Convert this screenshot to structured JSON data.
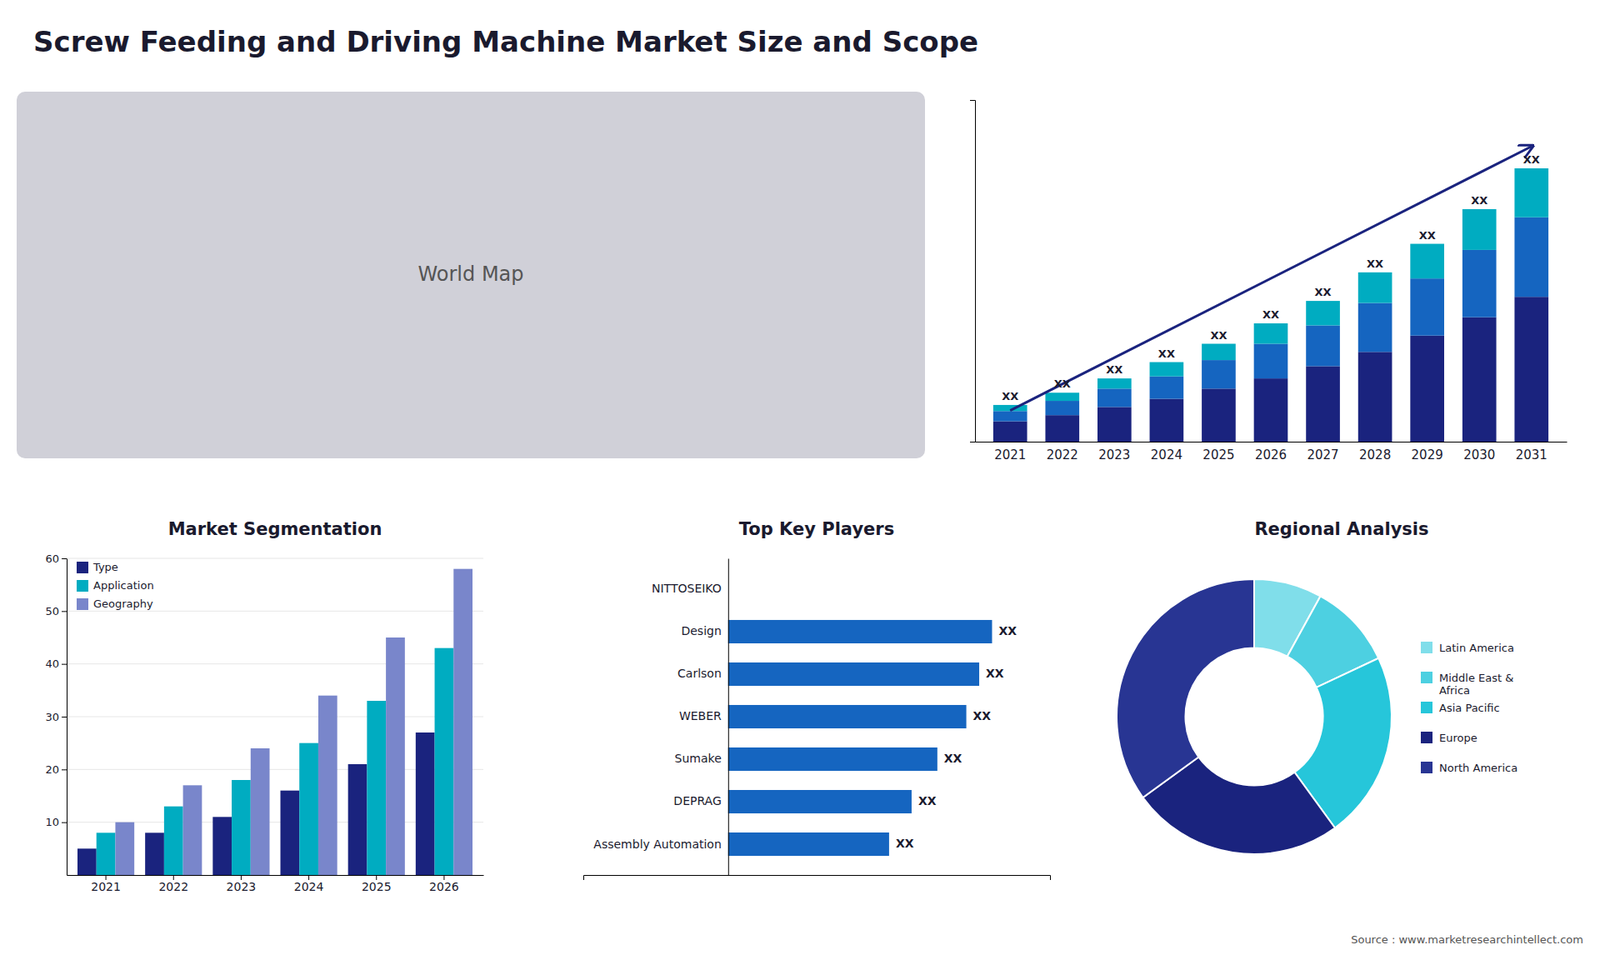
{
  "title": "Screw Feeding and Driving Machine Market Size and Scope",
  "annotations": [
    "Source : www.marketresearchintellect.com"
  ],
  "chart_data": [
    {
      "type": "map",
      "annotations": [
        "World Map"
      ]
    },
    {
      "type": "bar",
      "stacked": true,
      "categories": [
        "2021",
        "2022",
        "2023",
        "2024",
        "2025",
        "2026",
        "2027",
        "2028",
        "2029",
        "2030",
        "2031"
      ],
      "series": [
        {
          "color": "#1a237e",
          "values": [
            1,
            1.3,
            1.7,
            2.1,
            2.6,
            3.1,
            3.7,
            4.4,
            5.2,
            6.1,
            7.1
          ]
        },
        {
          "color": "#1565c0",
          "values": [
            0.5,
            0.7,
            0.9,
            1.1,
            1.4,
            1.7,
            2.0,
            2.4,
            2.8,
            3.3,
            3.9
          ]
        },
        {
          "color": "#00acc1",
          "values": [
            0.3,
            0.4,
            0.5,
            0.7,
            0.8,
            1.0,
            1.2,
            1.5,
            1.7,
            2.0,
            2.4
          ]
        }
      ],
      "ylim": [
        0,
        16.75
      ],
      "yticks": [],
      "tick_labels": "x",
      "grid": false,
      "annotations": [
        "XX",
        "XX",
        "XX",
        "XX",
        "XX",
        "XX",
        "XX",
        "XX",
        "XX",
        "XX",
        "XX"
      ]
    },
    {
      "type": "bar",
      "title": "Market Segmentation",
      "categories": [
        "2021",
        "2022",
        "2023",
        "2024",
        "2025",
        "2026"
      ],
      "series": [
        {
          "name": "Type",
          "color": "#1a237e",
          "values": [
            5,
            8,
            11,
            16,
            21,
            27
          ]
        },
        {
          "name": "Application",
          "color": "#00acc1",
          "values": [
            8,
            13,
            18,
            25,
            33,
            43
          ]
        },
        {
          "name": "Geography",
          "color": "#7986cb",
          "values": [
            10,
            17,
            24,
            34,
            45,
            58
          ]
        }
      ],
      "ylim": [
        0,
        60
      ],
      "yticks": [
        10,
        20,
        30,
        40,
        50,
        60
      ],
      "grid": true,
      "legend": "upper left"
    },
    {
      "type": "bar",
      "orientation": "horizontal",
      "title": "Top Key Players",
      "categories": [
        "NITTOSEIKO",
        "Design",
        "Carlson",
        "WEBER",
        "Sumake",
        "DEPRAG",
        "Assembly Automation"
      ],
      "values": [
        0,
        82,
        78,
        74,
        65,
        57,
        50
      ],
      "value_labels": [
        null,
        "XX",
        "XX",
        "XX",
        "XX",
        "XX",
        "XX"
      ],
      "data_labels": true,
      "color": "#1565c0",
      "xlim": [
        -45,
        100
      ],
      "xticks": [],
      "tick_labels": "y",
      "grid": false
    },
    {
      "type": "pie",
      "title": "Regional Analysis",
      "categories": [
        "Latin America",
        "Middle East &\nAfrica",
        "Asia Pacific",
        "Europe",
        "North America"
      ],
      "values": [
        8,
        10,
        22,
        25,
        35
      ],
      "colors": [
        "#80deea",
        "#4dd0e1",
        "#26c6da",
        "#1a237e",
        "#283593"
      ],
      "legend": "right"
    }
  ]
}
